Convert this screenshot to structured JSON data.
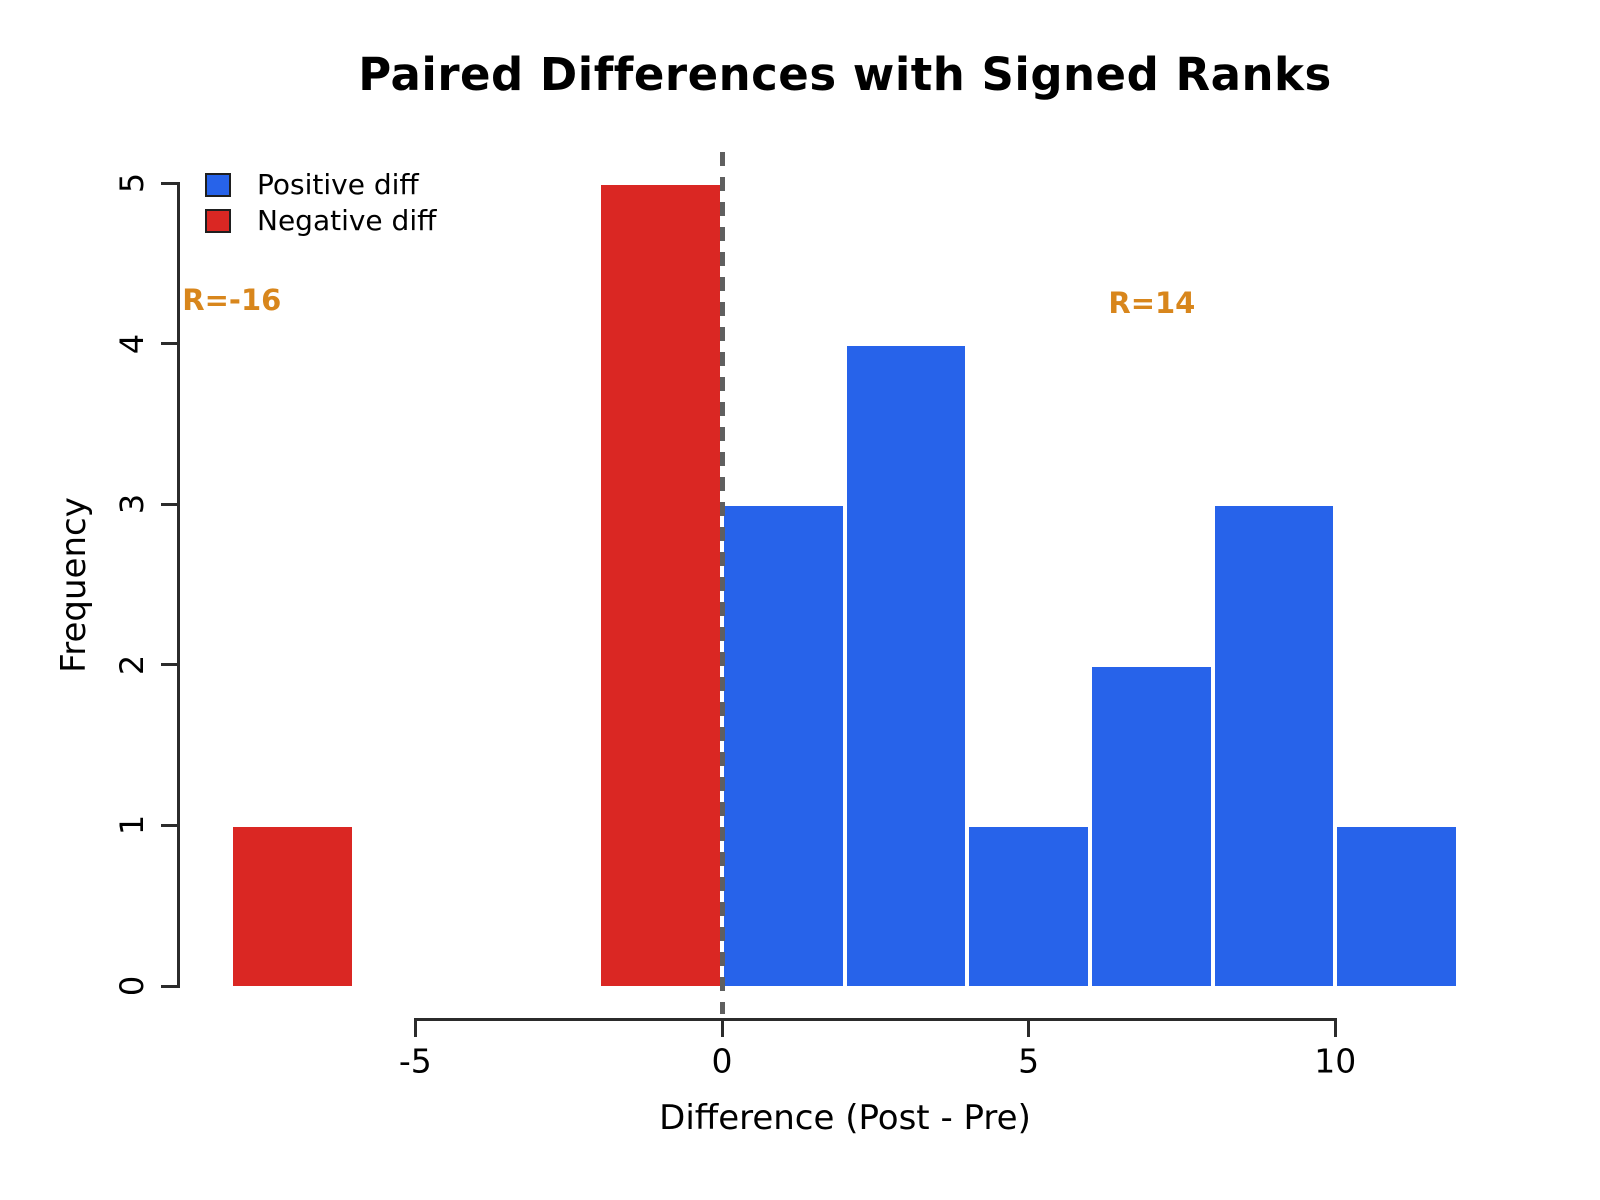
{
  "chart_data": {
    "type": "bar",
    "subtype": "histogram",
    "title": "Paired Differences with Signed Ranks",
    "xlabel": "Difference (Post - Pre)",
    "ylabel": "Frequency",
    "x_ticks": [
      -5,
      0,
      5,
      10
    ],
    "y_ticks": [
      0,
      1,
      2,
      3,
      4,
      5
    ],
    "xlim": [
      -8.8,
      12.8
    ],
    "ylim": [
      0,
      5
    ],
    "bin_width": 2,
    "grid": false,
    "legend_position": "top-left",
    "bins": [
      {
        "range": [
          -8,
          -6
        ],
        "count": 1,
        "sign": "negative"
      },
      {
        "range": [
          -2,
          0
        ],
        "count": 5,
        "sign": "negative"
      },
      {
        "range": [
          0,
          2
        ],
        "count": 3,
        "sign": "positive"
      },
      {
        "range": [
          2,
          4
        ],
        "count": 4,
        "sign": "positive"
      },
      {
        "range": [
          4,
          6
        ],
        "count": 1,
        "sign": "positive"
      },
      {
        "range": [
          6,
          8
        ],
        "count": 2,
        "sign": "positive"
      },
      {
        "range": [
          8,
          10
        ],
        "count": 3,
        "sign": "positive"
      },
      {
        "range": [
          10,
          12
        ],
        "count": 1,
        "sign": "positive"
      }
    ],
    "legend": [
      {
        "label": "Positive diff",
        "color": "#2763EA"
      },
      {
        "label": "Negative diff",
        "color": "#DA2723"
      }
    ],
    "annotations": [
      {
        "text": "R=-16",
        "x": -8.8,
        "y": 4.27
      },
      {
        "text": "R=14",
        "x": 6.3,
        "y": 4.25
      }
    ],
    "reference_line": {
      "x": 0,
      "style": "dashed"
    },
    "colors": {
      "positive": "#2763EA",
      "negative": "#DA2723",
      "annotation": "#D8861C",
      "reference": "#5f5f5f",
      "axis": "#2b2b2b",
      "text": "#000000",
      "background": "#ffffff"
    }
  }
}
